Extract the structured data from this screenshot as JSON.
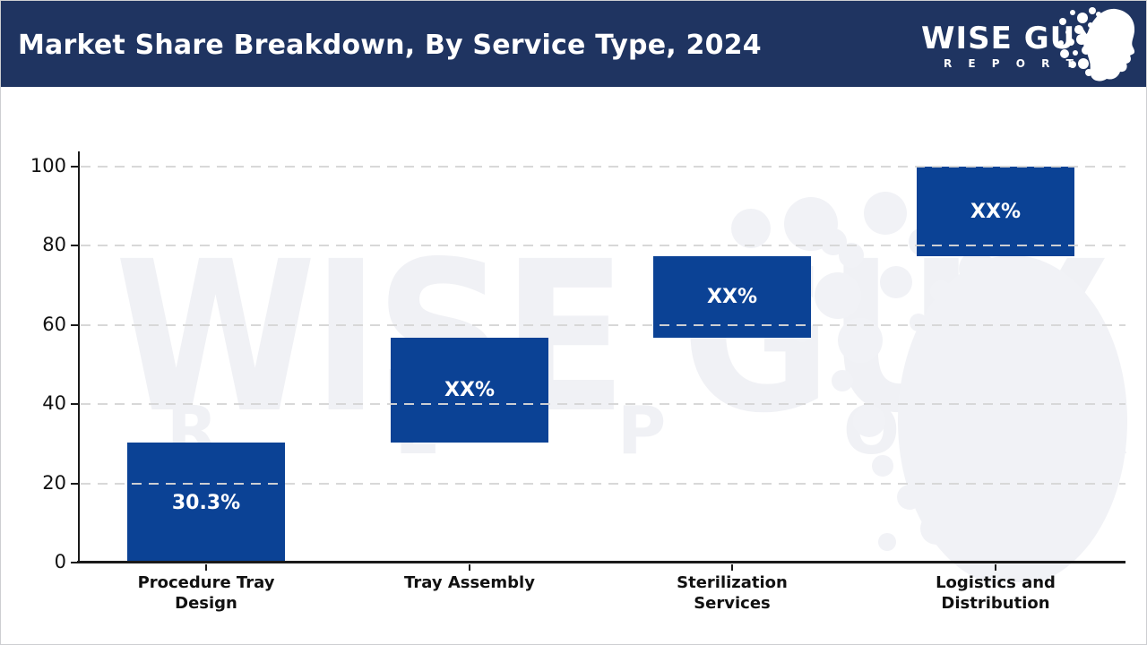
{
  "header": {
    "title": "Market Share Breakdown, By Service Type, 2024",
    "logo": {
      "line1": "WISE GUY",
      "line2": "R E P O R T S"
    }
  },
  "watermark": {
    "line1": "WISE GUY",
    "line2": "R E P O R T S"
  },
  "colors": {
    "header_bg": "#1f3461",
    "bar": "#0b4295",
    "bar_label": "#ffffff",
    "grid": "#d6d6d6",
    "axis": "#1a1a1a",
    "watermark": "#f0f1f5"
  },
  "chart_data": {
    "type": "bar",
    "subtype": "waterfall",
    "title": "Market Share Breakdown, By Service Type, 2024",
    "xlabel": "",
    "ylabel": "",
    "ylim": [
      0,
      100
    ],
    "yticks": [
      0,
      20,
      40,
      60,
      80,
      100
    ],
    "grid": "horizontal-dashed",
    "legend": "none",
    "categories": [
      "Procedure Tray Design",
      "Tray Assembly",
      "Sterilization Services",
      "Logistics and Distribution"
    ],
    "segments": [
      {
        "category": "Procedure Tray Design",
        "category_lines": [
          "Procedure Tray",
          "Design"
        ],
        "start": 0,
        "end": 30.3,
        "label": "30.3%"
      },
      {
        "category": "Tray Assembly",
        "category_lines": [
          "Tray Assembly"
        ],
        "start": 30.3,
        "end": 56.8,
        "label": "XX%"
      },
      {
        "category": "Sterilization Services",
        "category_lines": [
          "Sterilization",
          "Services"
        ],
        "start": 56.8,
        "end": 77.3,
        "label": "XX%"
      },
      {
        "category": "Logistics and Distribution",
        "category_lines": [
          "Logistics and",
          "Distribution"
        ],
        "start": 77.3,
        "end": 100,
        "label": "XX%"
      }
    ]
  }
}
